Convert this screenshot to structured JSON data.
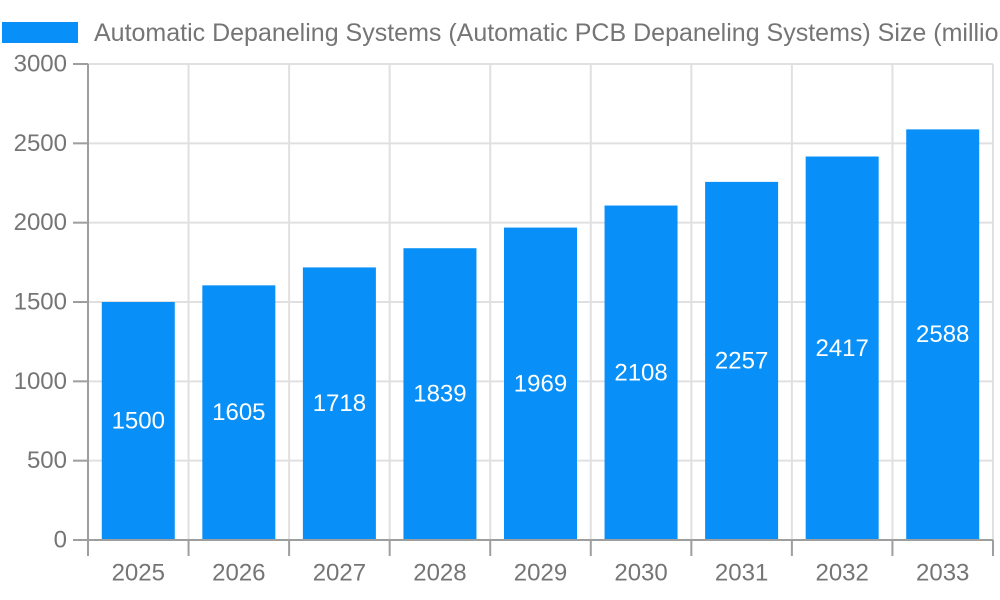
{
  "chart_data": {
    "type": "bar",
    "title": "Automatic Depaneling Systems (Automatic PCB Depaneling Systems) Size (million)",
    "legend": {
      "position": "top-left",
      "label": "Automatic Depaneling Systems (Automatic PCB Depaneling Systems) Size (million)"
    },
    "categories": [
      "2025",
      "2026",
      "2027",
      "2028",
      "2029",
      "2030",
      "2031",
      "2032",
      "2033"
    ],
    "values": [
      1500,
      1605,
      1718,
      1839,
      1969,
      2108,
      2257,
      2417,
      2588
    ],
    "xlabel": "",
    "ylabel": "",
    "ylim": [
      0,
      3000
    ],
    "yticks": [
      0,
      500,
      1000,
      1500,
      2000,
      2500,
      3000
    ],
    "grid": true,
    "bar_value_labels_shown": true
  },
  "colors": {
    "bar": "#0890F8",
    "bar_label_text": "#FFFFFF",
    "axis_text": "#757575",
    "title_text": "#757575",
    "gridline": "#E0E0E0",
    "axis_line": "#9E9E9E",
    "background": "#FFFFFF"
  }
}
